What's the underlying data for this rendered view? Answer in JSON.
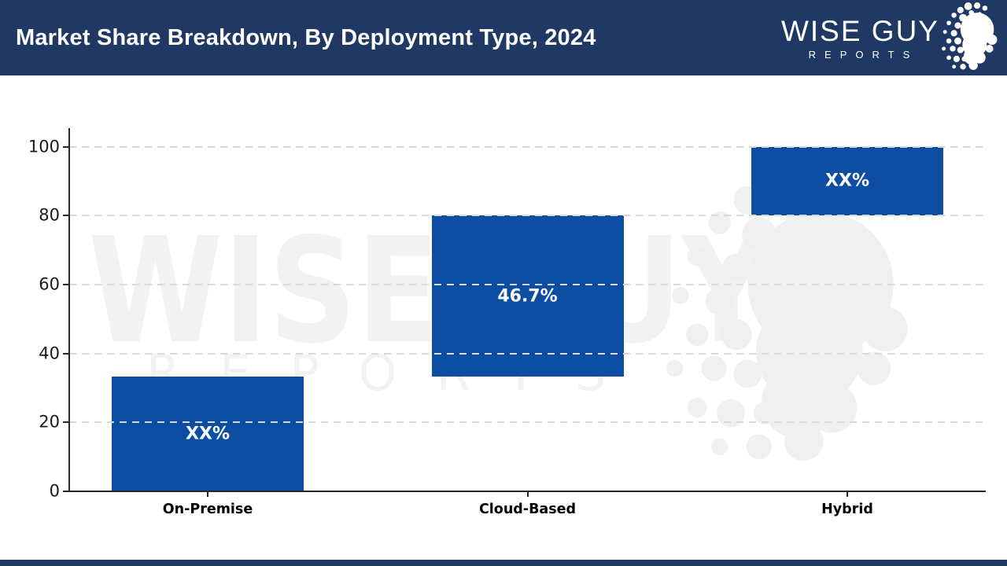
{
  "header": {
    "title": "Market Share Breakdown, By Deployment Type, 2024",
    "logo": {
      "line1": "WISE GUY",
      "line2": "REPORTS"
    }
  },
  "watermark": {
    "line1": "WISE GUY",
    "line2": "REPORTS"
  },
  "chart_data": {
    "type": "bar",
    "variant": "floating-waterfall",
    "title": "Market Share Breakdown, By Deployment Type, 2024",
    "categories": [
      "On-Premise",
      "Cloud-Based",
      "Hybrid"
    ],
    "segments": [
      {
        "category": "On-Premise",
        "start": 0,
        "end": 33.3,
        "value_label": "XX%"
      },
      {
        "category": "Cloud-Based",
        "start": 33.3,
        "end": 80,
        "value_label": "46.7%"
      },
      {
        "category": "Hybrid",
        "start": 80,
        "end": 100,
        "value_label": "XX%"
      }
    ],
    "xlabel": "",
    "ylabel": "",
    "ylim": [
      0,
      100
    ],
    "yticks": [
      0,
      20,
      40,
      60,
      80,
      100
    ],
    "grid": "horizontal-dashed",
    "legend": "none"
  },
  "colors": {
    "header_background": "#1f3864",
    "footer_background": "#1f3864",
    "bar_fill": "#0d4da2",
    "grid_line": "#d9d9d9",
    "axis_line": "#262626",
    "bar_label_text": "#ffffff",
    "watermark": "#f2f2f2"
  }
}
